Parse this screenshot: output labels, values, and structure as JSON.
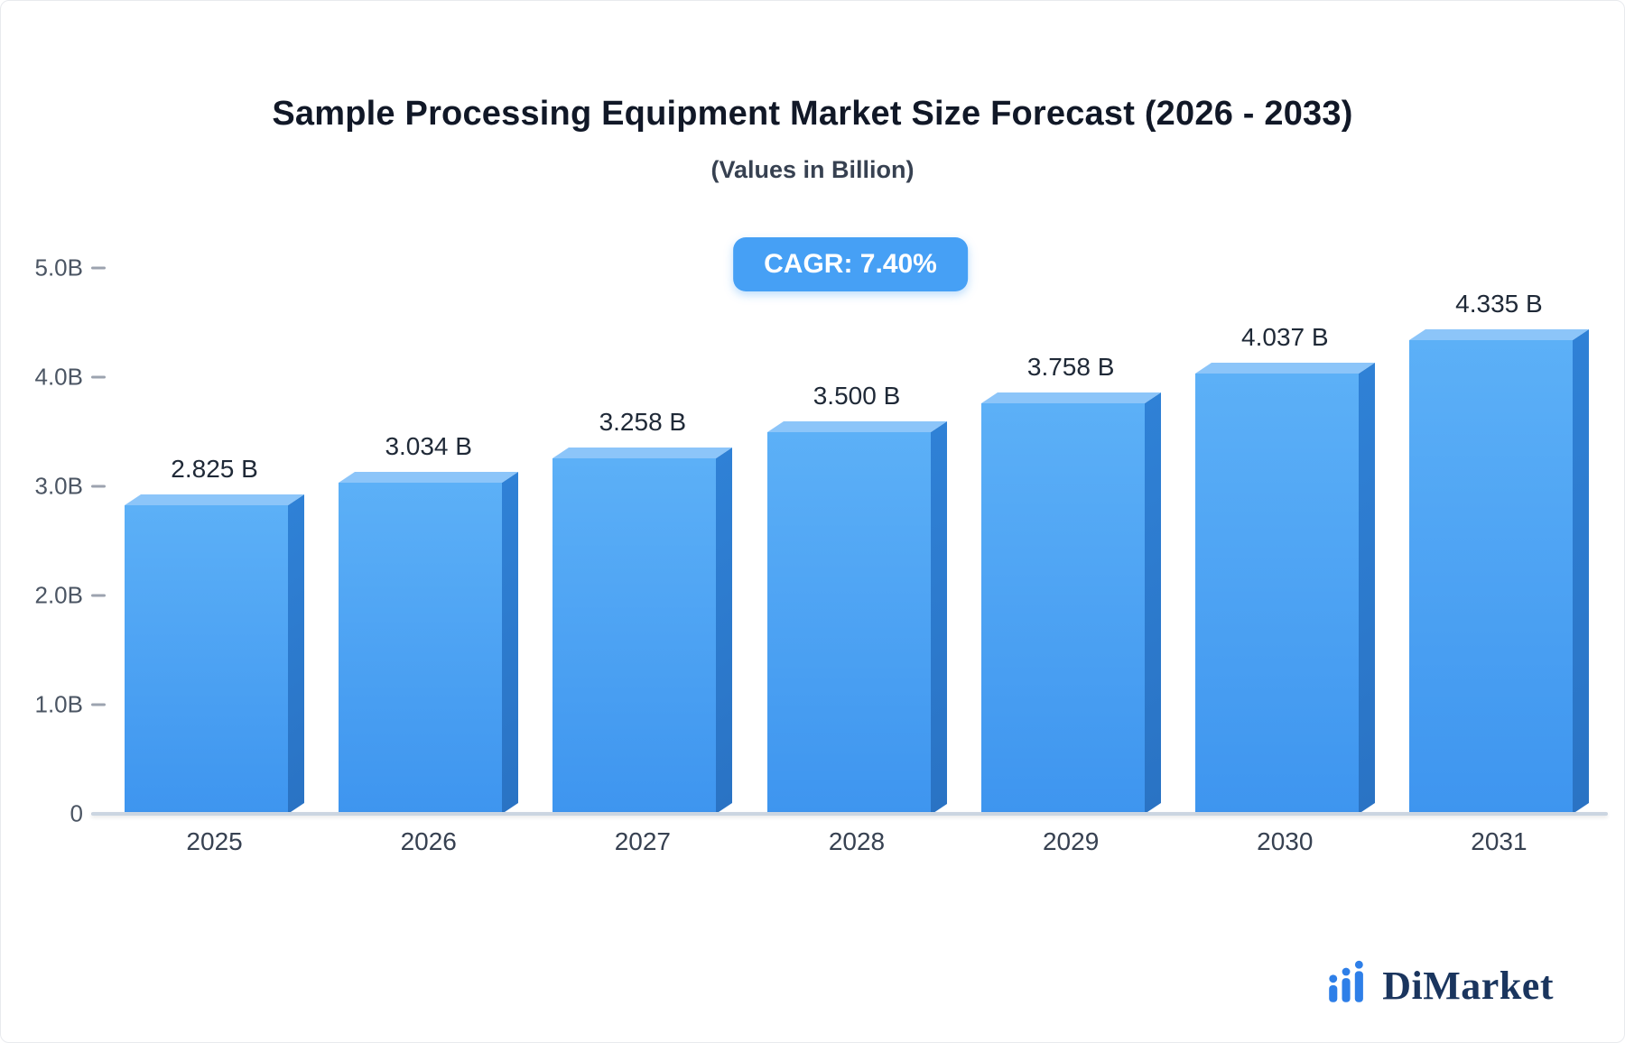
{
  "header": {
    "title": "Sample Processing Equipment Market Size Forecast (2026 - 2033)",
    "subtitle": "(Values in Billion)"
  },
  "badge": {
    "label": "CAGR: 7.40%",
    "bg_color": "#46a0f5",
    "text_color": "#ffffff"
  },
  "chart_data": {
    "type": "bar",
    "title": "Sample Processing Equipment Market Size Forecast (2026 - 2033)",
    "subtitle": "(Values in Billion)",
    "categories": [
      "2025",
      "2026",
      "2027",
      "2028",
      "2029",
      "2030",
      "2031"
    ],
    "values": [
      2.825,
      3.034,
      3.258,
      3.5,
      3.758,
      4.037,
      4.335
    ],
    "value_labels": [
      "2.825 B",
      "3.034 B",
      "3.258 B",
      "3.500 B",
      "3.758 B",
      "4.037 B",
      "4.335 B"
    ],
    "xlabel": "",
    "ylabel": "",
    "ylim": [
      0,
      5
    ],
    "yticks": [
      0,
      1,
      2,
      3,
      4,
      5
    ],
    "ytick_labels": [
      "0",
      "1.0B",
      "2.0B",
      "3.0B",
      "4.0B",
      "5.0B"
    ],
    "grid": false,
    "legend": false,
    "bar_colors": {
      "front_top": "#5cb0f7",
      "front_bottom": "#3e95ef",
      "side": "#2d7bcf",
      "top": "#8cc5f9"
    }
  },
  "logo": {
    "text": "DiMarket",
    "icon": "bar-chart-logo-icon",
    "text_color": "#1a355e",
    "accent_color": "#2e7fe8"
  }
}
